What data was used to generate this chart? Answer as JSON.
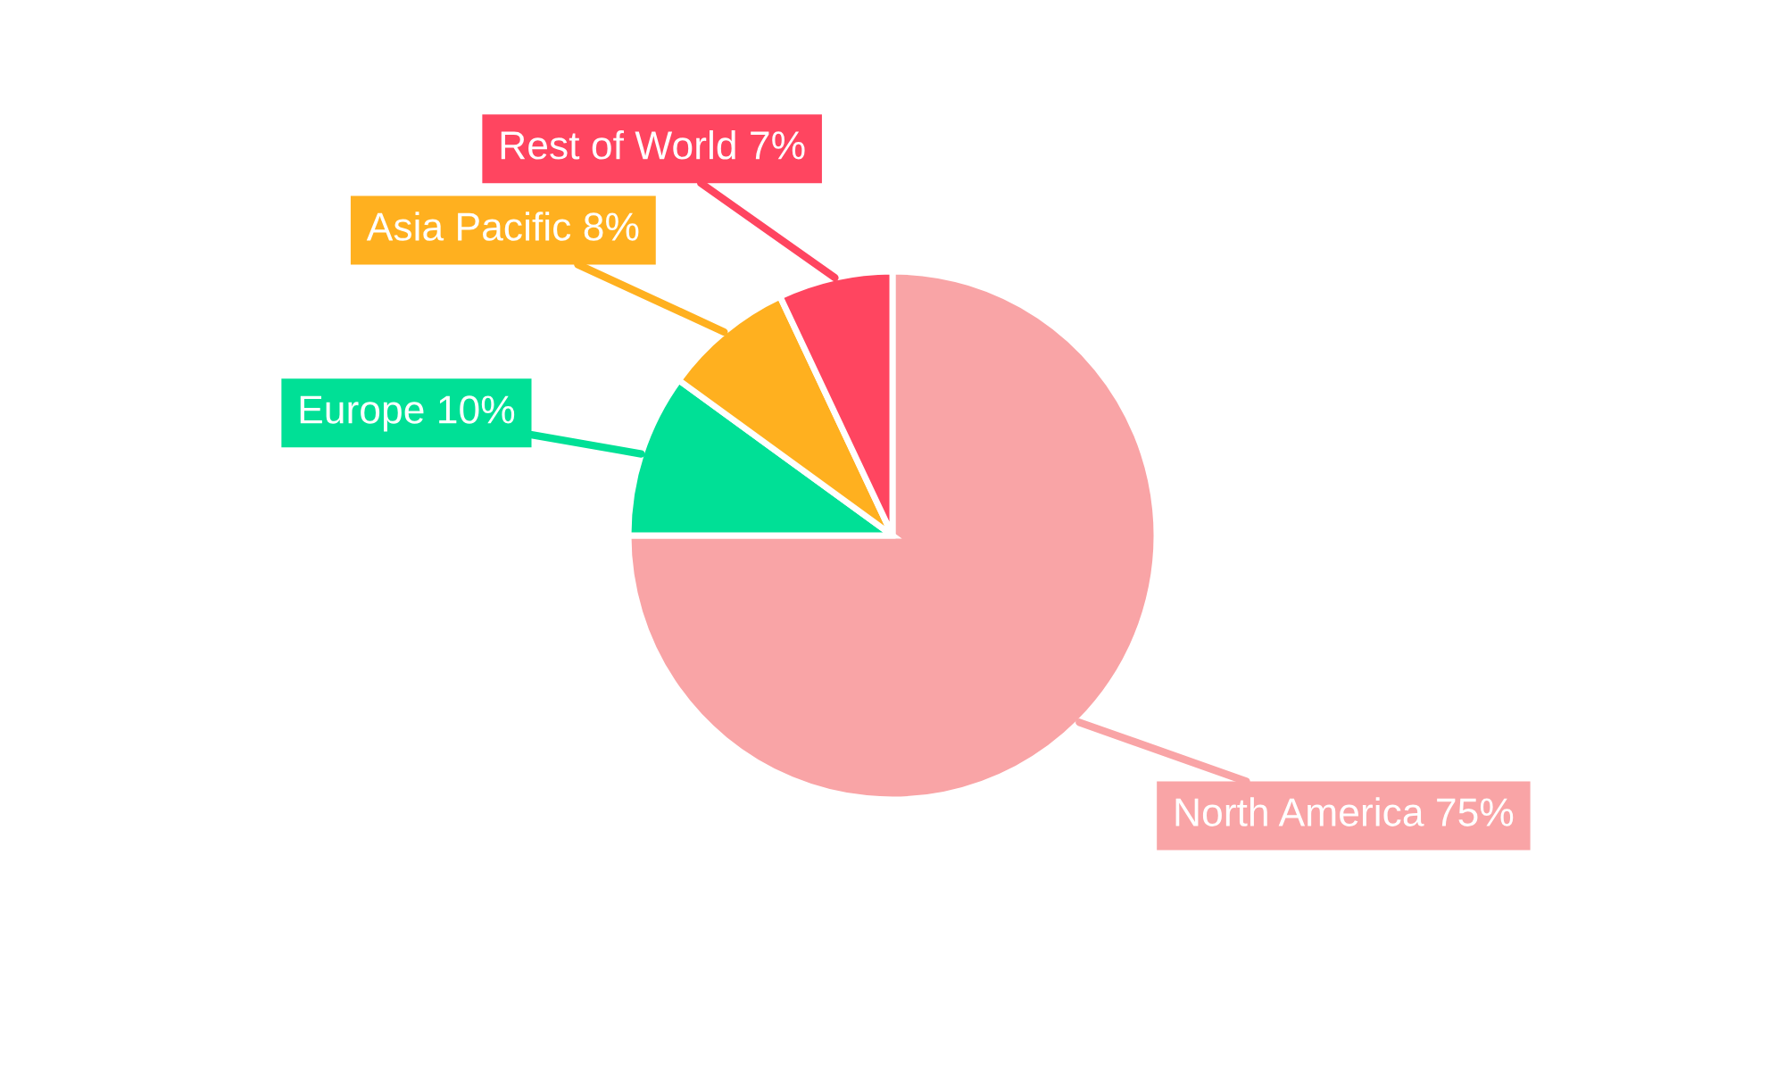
{
  "chart_data": {
    "type": "pie",
    "categories": [
      "North America",
      "Europe",
      "Asia Pacific",
      "Rest of World"
    ],
    "values": [
      75,
      10,
      8,
      7
    ],
    "value_labels": [
      "75%",
      "10%",
      "8%",
      "7%"
    ],
    "colors": [
      "#f9a4a6",
      "#00e096",
      "#ffb01f",
      "#ff4560"
    ]
  }
}
